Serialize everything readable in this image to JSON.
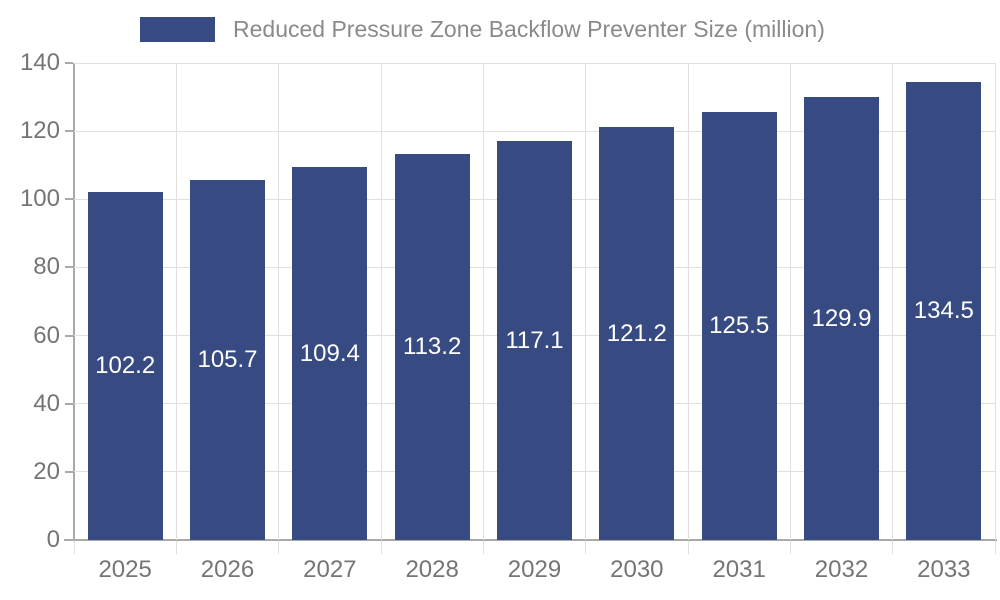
{
  "legend": {
    "label": "Reduced Pressure Zone Backflow Preventer Size (million)"
  },
  "chart_data": {
    "type": "bar",
    "title": "Reduced Pressure Zone Backflow Preventer Size (million)",
    "categories": [
      "2025",
      "2026",
      "2027",
      "2028",
      "2029",
      "2030",
      "2031",
      "2032",
      "2033"
    ],
    "values": [
      102.2,
      105.7,
      109.4,
      113.2,
      117.1,
      121.2,
      125.5,
      129.9,
      134.5
    ],
    "value_labels": [
      "102.2",
      "105.7",
      "109.4",
      "113.2",
      "117.1",
      "121.2",
      "125.5",
      "129.9",
      "134.5"
    ],
    "xlabel": "",
    "ylabel": "",
    "ylim": [
      0,
      140
    ],
    "ytick_step": 20,
    "ytick_labels": [
      "0",
      "20",
      "40",
      "60",
      "80",
      "100",
      "120",
      "140"
    ],
    "grid": true,
    "legend_position": "top",
    "colors": {
      "bar": "#374b82",
      "grid": "#e0e0e0",
      "axis": "#a9a9a9",
      "tick_label": "#757575",
      "legend_text": "#8a8a8a",
      "bar_label": "#ffffff",
      "background": "#ffffff"
    }
  }
}
